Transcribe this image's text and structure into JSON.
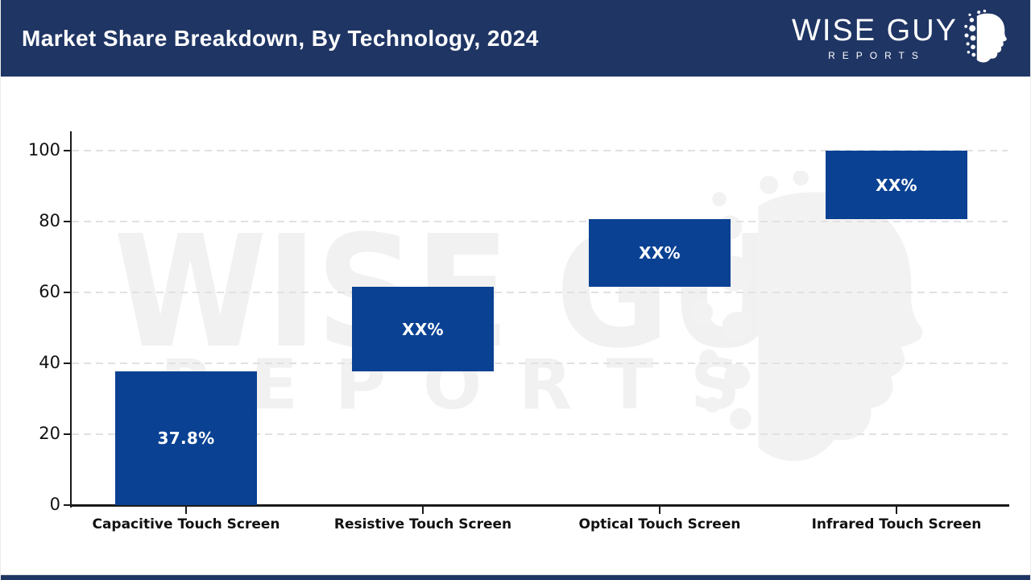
{
  "header": {
    "title": "Market Share Breakdown, By Technology, 2024",
    "logo": {
      "line1": "WISE GUY",
      "line2": "REPORTS"
    },
    "bg_color": "#1f3564"
  },
  "watermark": {
    "line1": "WISE GUY",
    "line2": "REPORTS",
    "color": "#f1f1f1"
  },
  "chart_data": {
    "type": "bar",
    "subtype": "floating-waterfall-segments",
    "title": "Market Share Breakdown, By Technology, 2024",
    "categories": [
      "Capacitive Touch Screen",
      "Resistive Touch Screen",
      "Optical Touch Screen",
      "Infrared Touch Screen"
    ],
    "series": [
      {
        "name": "Capacitive Touch Screen",
        "start": 0,
        "end": 37.8,
        "label": "37.8%"
      },
      {
        "name": "Resistive Touch Screen",
        "start": 37.8,
        "end": 61.5,
        "label": "XX%"
      },
      {
        "name": "Optical Touch Screen",
        "start": 61.5,
        "end": 80.6,
        "label": "XX%"
      },
      {
        "name": "Infrared Touch Screen",
        "start": 80.6,
        "end": 100,
        "label": "XX%"
      }
    ],
    "xlabel": "",
    "ylabel": "",
    "yticks": [
      0,
      20,
      40,
      60,
      80,
      100
    ],
    "ylim": [
      0,
      105
    ],
    "grid": "dashed-horizontal",
    "legend": "none",
    "bar_color": "#0a4193",
    "bar_label_color": "#ffffff",
    "axis_color": "#1a1a1a",
    "grid_color": "#e1e1e1"
  },
  "footer": {
    "bg_color": "#1f3564"
  }
}
